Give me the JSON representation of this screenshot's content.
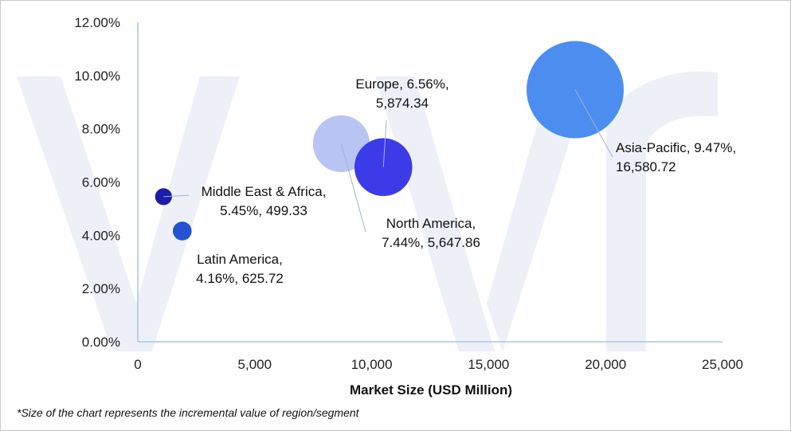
{
  "chart_data": {
    "type": "scatter",
    "subtype": "bubble",
    "xlabel": "Market Size (USD Million)",
    "ylabel": "",
    "xlim": [
      0,
      25000
    ],
    "ylim": [
      0,
      0.12
    ],
    "x_ticks": [
      "0",
      "5,000",
      "10,000",
      "15,000",
      "20,000",
      "25,000"
    ],
    "y_ticks": [
      "0.00%",
      "2.00%",
      "4.00%",
      "6.00%",
      "8.00%",
      "10.00%",
      "12.00%"
    ],
    "grid": false,
    "legend": "none",
    "footnote": "*Size of the chart represents the incremental value of region/segment",
    "points": [
      {
        "label_lines": [
          "Asia-Pacific, 9.47%,",
          "16,580.72"
        ],
        "x": 18700,
        "y": 0.0947,
        "size": 16580.72,
        "color": "#4b8ef0"
      },
      {
        "label_lines": [
          "Europe, 6.56%,",
          "5,874.34"
        ],
        "x": 10500,
        "y": 0.0656,
        "size": 5874.34,
        "color": "#3b3be8"
      },
      {
        "label_lines": [
          "North America,",
          "7.44%, 5,647.86"
        ],
        "x": 8700,
        "y": 0.0744,
        "size": 5647.86,
        "color": "#b8c4f2"
      },
      {
        "label_lines": [
          "Middle East & Africa,",
          "5.45%, 499.33"
        ],
        "x": 1100,
        "y": 0.0545,
        "size": 499.33,
        "color": "#1c1ca8"
      },
      {
        "label_lines": [
          "Latin America,",
          "4.16%, 625.72"
        ],
        "x": 1900,
        "y": 0.0416,
        "size": 625.72,
        "color": "#2452d2"
      }
    ]
  }
}
